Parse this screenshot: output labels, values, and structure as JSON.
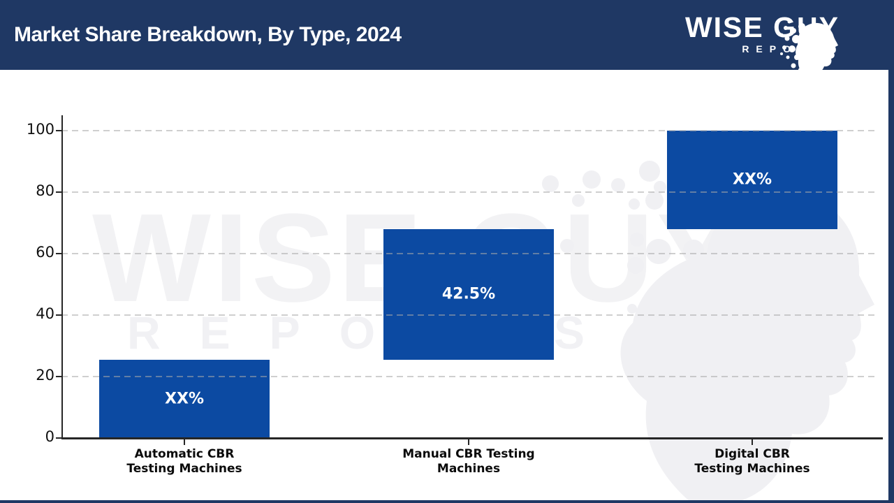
{
  "header": {
    "title": "Market Share Breakdown, By Type, 2024",
    "logo": {
      "line1": "WISE GUY",
      "line2": "REPORTS"
    }
  },
  "watermark": {
    "line1": "WISE GUY",
    "line2": "REPORTS"
  },
  "colors": {
    "header_bg": "#1f3864",
    "bar": "#0c4aa2",
    "value_label": "#ffffff",
    "grid": "#d9d9d9",
    "axis": "#262626",
    "watermark": "#f2f2f4"
  },
  "chart_data": {
    "type": "bar",
    "subtype": "floating-segment-waterfall",
    "title": "Market Share Breakdown, By Type, 2024",
    "categories": [
      "Automatic CBR Testing Machines",
      "Manual CBR Testing Machines",
      "Digital CBR Testing Machines"
    ],
    "category_label_lines": [
      [
        "Automatic CBR",
        "Testing Machines"
      ],
      [
        "Manual CBR Testing",
        "Machines"
      ],
      [
        "Digital CBR",
        "Testing Machines"
      ]
    ],
    "segments": [
      {
        "category": "Automatic CBR Testing Machines",
        "start": 0,
        "end": 25.5,
        "value": null,
        "value_label": "XX%"
      },
      {
        "category": "Manual CBR Testing Machines",
        "start": 25.5,
        "end": 68,
        "value": 42.5,
        "value_label": "42.5%"
      },
      {
        "category": "Digital CBR Testing Machines",
        "start": 68,
        "end": 100,
        "value": null,
        "value_label": "XX%"
      }
    ],
    "xlabel": "",
    "ylabel": "",
    "ylim": [
      0,
      100
    ],
    "yticks": [
      0,
      20,
      40,
      60,
      80,
      100
    ],
    "grid": {
      "horizontal": true,
      "style": "dashed"
    },
    "legend": "none",
    "bar_color": "#0c4aa2",
    "value_label_color": "#ffffff"
  }
}
